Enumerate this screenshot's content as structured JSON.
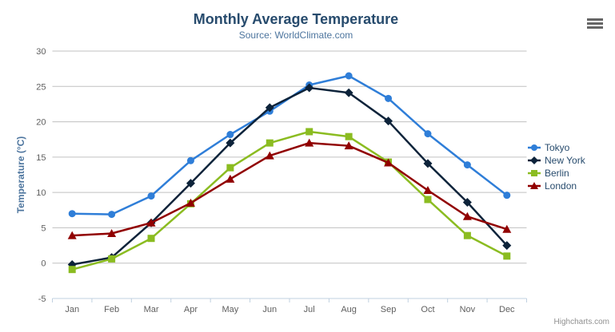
{
  "credit": {
    "label": "Highcharts.com"
  },
  "menu": {
    "icon": "hamburger-menu-icon"
  },
  "chart_data": {
    "type": "line",
    "title": "Monthly Average Temperature",
    "subtitle": "Source: WorldClimate.com",
    "categories": [
      "Jan",
      "Feb",
      "Mar",
      "Apr",
      "May",
      "Jun",
      "Jul",
      "Aug",
      "Sep",
      "Oct",
      "Nov",
      "Dec"
    ],
    "xlabel": "",
    "ylabel": "Temperature (°C)",
    "ylim": [
      -5,
      30
    ],
    "yticks": [
      30,
      25,
      20,
      15,
      10,
      5,
      0,
      -5
    ],
    "grid": true,
    "legend_position": "right",
    "series": [
      {
        "name": "Tokyo",
        "marker": "circle",
        "color": "#2f7ed8",
        "values": [
          7.0,
          6.9,
          9.5,
          14.5,
          18.2,
          21.5,
          25.2,
          26.5,
          23.3,
          18.3,
          13.9,
          9.6
        ]
      },
      {
        "name": "New York",
        "marker": "diamond",
        "color": "#0d233a",
        "values": [
          -0.2,
          0.8,
          5.7,
          11.3,
          17.0,
          22.0,
          24.8,
          24.1,
          20.1,
          14.1,
          8.6,
          2.5
        ]
      },
      {
        "name": "Berlin",
        "marker": "square",
        "color": "#8bbc21",
        "values": [
          -0.9,
          0.6,
          3.5,
          8.4,
          13.5,
          17.0,
          18.6,
          17.9,
          14.3,
          9.0,
          3.9,
          1.0
        ]
      },
      {
        "name": "London",
        "marker": "triangle",
        "color": "#910000",
        "values": [
          3.9,
          4.2,
          5.7,
          8.5,
          11.9,
          15.2,
          17.0,
          16.6,
          14.2,
          10.3,
          6.6,
          4.8
        ]
      }
    ],
    "colors": {
      "title": "#274b6d",
      "subtitle": "#4d759e",
      "axis_title": "#4d759e",
      "tick_label": "#606060",
      "grid_line": "#c0c0c0",
      "axis_line": "#c0d0e0",
      "legend_text": "#274b6d",
      "credit_text": "#909090",
      "menu_icon": "#666666",
      "background": "#ffffff"
    }
  }
}
